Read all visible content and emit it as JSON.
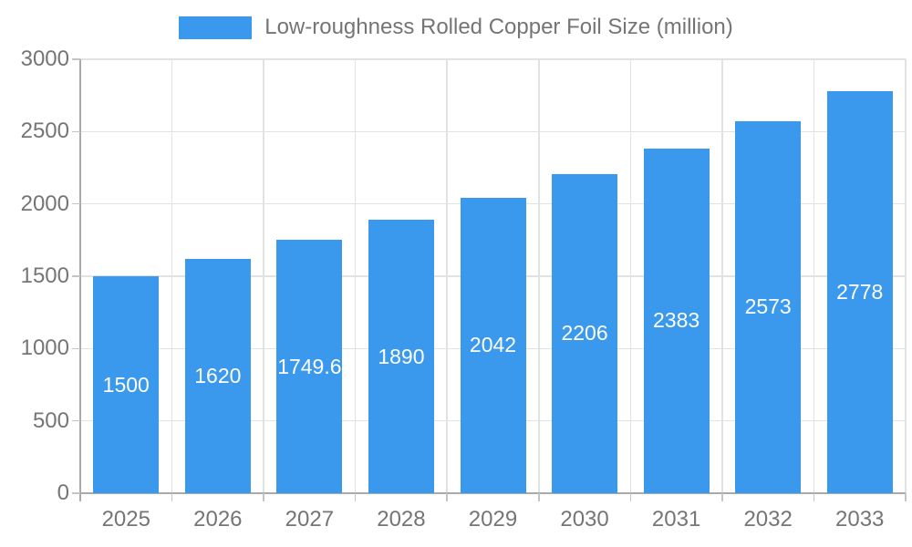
{
  "legend": {
    "label": "Low-roughness Rolled Copper Foil Size (million)"
  },
  "chart_data": {
    "type": "bar",
    "title": "Low-roughness Rolled Copper Foil Size (million)",
    "categories": [
      "2025",
      "2026",
      "2027",
      "2028",
      "2029",
      "2030",
      "2031",
      "2032",
      "2033"
    ],
    "values": [
      1500,
      1620,
      1749.6,
      1890,
      2042,
      2206,
      2383,
      2573,
      2778
    ],
    "series": [
      {
        "name": "Low-roughness Rolled Copper Foil Size (million)",
        "values": [
          1500,
          1620,
          1749.6,
          1890,
          2042,
          2206,
          2383,
          2573,
          2778
        ]
      }
    ],
    "xlabel": "",
    "ylabel": "",
    "ylim": [
      0,
      3000
    ],
    "yticks": [
      0,
      500,
      1000,
      1500,
      2000,
      2500,
      3000
    ],
    "grid": true,
    "legend_position": "top-center",
    "value_labels_position": "inside-center"
  },
  "colors": {
    "bar": "#3A99EC",
    "grid_line": "#E2E2E2",
    "axis_line": "#AAAAAA",
    "tick": "#C4C4C4",
    "axis_label": "#757575",
    "legend_text": "#757575",
    "value_label": "#FFFFFF",
    "background": "#FFFFFF"
  }
}
